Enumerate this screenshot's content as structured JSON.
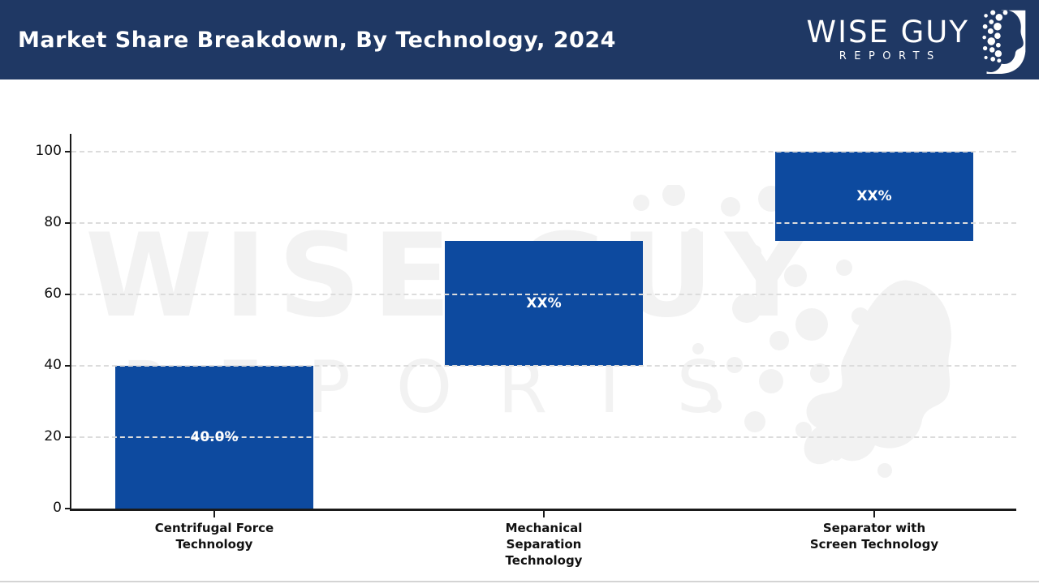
{
  "header": {
    "title": "Market Share Breakdown, By Technology, 2024",
    "logo": {
      "line1": "WISE GUY",
      "line2": "REPORTS"
    }
  },
  "watermark": {
    "line1": "WISE GUY",
    "line2": "REPORTS"
  },
  "chart_data": {
    "type": "bar",
    "subtype": "floating-segment-breakdown",
    "title": "Market Share Breakdown, By Technology, 2024",
    "categories": [
      "Centrifugal Force Technology",
      "Mechanical Separation Technology",
      "Separator with Screen Technology"
    ],
    "category_label_lines": [
      [
        "Centrifugal Force",
        "Technology"
      ],
      [
        "Mechanical",
        "Separation",
        "Technology"
      ],
      [
        "Separator with",
        "Screen Technology"
      ]
    ],
    "segments": [
      {
        "category": "Centrifugal Force Technology",
        "from": 0,
        "to": 40,
        "size": 40,
        "label": "40.0%"
      },
      {
        "category": "Mechanical Separation Technology",
        "from": 40,
        "to": 75,
        "size": 35,
        "label": "XX%"
      },
      {
        "category": "Separator with Screen Technology",
        "from": 75,
        "to": 100,
        "size": 25,
        "label": "XX%"
      }
    ],
    "xlabel": "",
    "ylabel": "",
    "ylim": [
      0,
      100
    ],
    "yticks": [
      0,
      20,
      40,
      60,
      80,
      100
    ],
    "grid": {
      "horizontal": true,
      "style": "dashed"
    },
    "legend": "none",
    "colors": {
      "bar": "#0d4a9f",
      "header_bg": "#1f3864",
      "grid": "#dcdcdc",
      "axis": "#1a1a1a",
      "watermark": "#f2f2f2",
      "bar_label_text": "#ffffff",
      "tick_text": "#111111",
      "title_text": "#ffffff"
    }
  }
}
